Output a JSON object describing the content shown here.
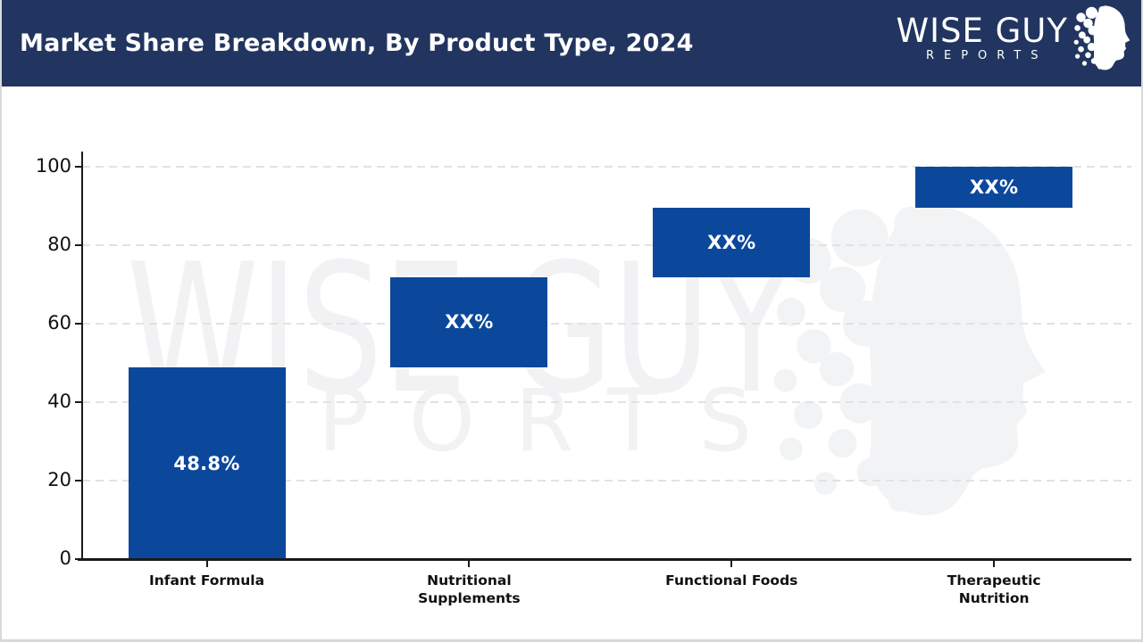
{
  "header": {
    "title": "Market Share Breakdown, By Product Type, 2024",
    "logo_line1": "WISE GUY",
    "logo_line2": "REPORTS",
    "bg_color": "#223560"
  },
  "watermark": {
    "line1": "WISE GUY",
    "line2": "REPORTS",
    "color": "#f2f2f4"
  },
  "chart_data": {
    "type": "bar",
    "subtype": "waterfall",
    "title": "Market Share Breakdown, By Product Type, 2024",
    "xlabel": "",
    "ylabel": "",
    "categories": [
      "Infant Formula",
      "Nutritional Supplements",
      "Functional Foods",
      "Therapeutic Nutrition"
    ],
    "segments": [
      {
        "category": "Infant Formula",
        "start": 0,
        "end": 48.8,
        "label": "48.8%"
      },
      {
        "category": "Nutritional Supplements",
        "start": 48.8,
        "end": 71.9,
        "label": "XX%"
      },
      {
        "category": "Functional Foods",
        "start": 71.9,
        "end": 89.6,
        "label": "XX%"
      },
      {
        "category": "Therapeutic Nutrition",
        "start": 89.6,
        "end": 100,
        "label": "XX%"
      }
    ],
    "yticks": [
      0,
      20,
      40,
      60,
      80,
      100
    ],
    "ylim": [
      0,
      104
    ],
    "grid": "horizontal-dashed",
    "legend": "none",
    "bar_color": "#0b489c",
    "bar_label_color": "#ffffff"
  }
}
